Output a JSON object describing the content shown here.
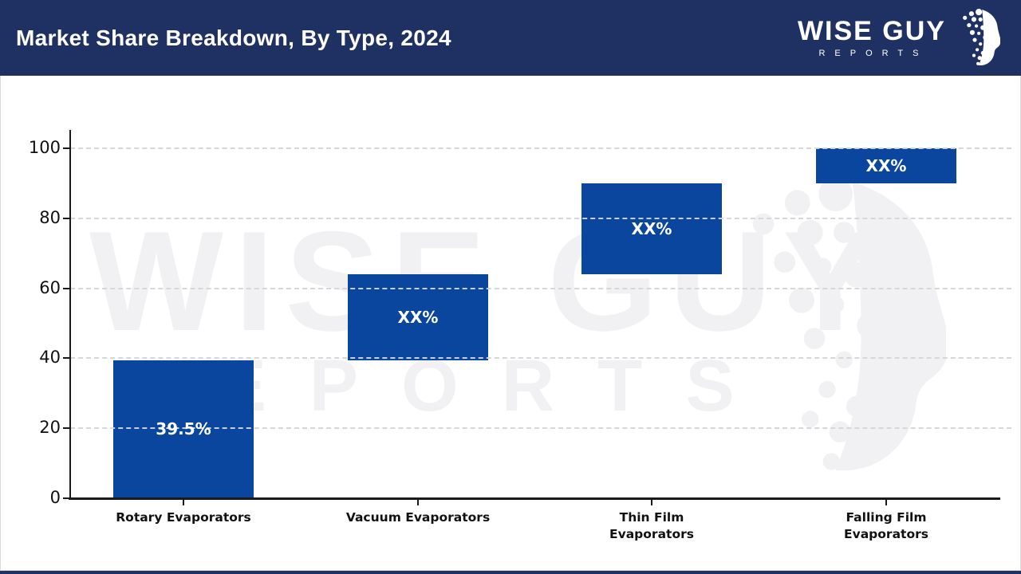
{
  "header": {
    "title": "Market Share Breakdown, By Type, 2024",
    "bg_color": "#1f3163"
  },
  "logo": {
    "name": "WISE GUY",
    "subtitle": "REPORTS"
  },
  "watermark": {
    "line1": "WISE GUY",
    "line2": "REPORTS"
  },
  "chart_data": {
    "type": "bar",
    "subtype": "waterfall",
    "title": "Market Share Breakdown, By Type, 2024",
    "categories": [
      "Rotary Evaporators",
      "Vacuum Evaporators",
      "Thin Film\nEvaporators",
      "Falling Film\nEvaporators"
    ],
    "segments": [
      {
        "category": "Rotary Evaporators",
        "start": 0,
        "end": 39.5,
        "label": "39.5%"
      },
      {
        "category": "Vacuum Evaporators",
        "start": 39.5,
        "end": 64,
        "label": "XX%"
      },
      {
        "category": "Thin Film Evaporators",
        "start": 64,
        "end": 90,
        "label": "XX%"
      },
      {
        "category": "Falling Film Evaporators",
        "start": 90,
        "end": 100,
        "label": "XX%"
      }
    ],
    "yticks": [
      0,
      20,
      40,
      60,
      80,
      100
    ],
    "ylim": [
      0,
      100
    ],
    "xlabel": "",
    "ylabel": "",
    "grid": "horizontal dashed, drawn above bars",
    "legend": "none",
    "bar_color": "#0b469e",
    "value_label_color": "#ffffff",
    "axis_color": "#1a1a1a",
    "gridline_color": "#d5d5d5"
  }
}
